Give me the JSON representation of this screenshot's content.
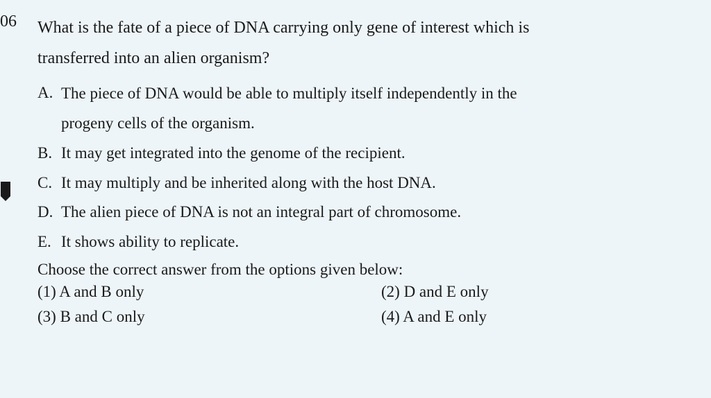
{
  "question": {
    "number": "06",
    "text_line1": "What is the fate of a piece of DNA carrying only gene of interest which is",
    "text_line2": "transferred into an alien organism?"
  },
  "options": {
    "A": {
      "letter": "A.",
      "text_line1": "The piece of DNA would be able to multiply itself independently in the",
      "text_line2": "progeny cells of the organism."
    },
    "B": {
      "letter": "B.",
      "text": "It may get integrated into the genome of the recipient."
    },
    "C": {
      "letter": "C.",
      "text": "It may multiply and be inherited along with the host DNA."
    },
    "D": {
      "letter": "D.",
      "text": "The alien piece of DNA is not an integral part of chromosome."
    },
    "E": {
      "letter": "E.",
      "text": "It shows ability to replicate."
    }
  },
  "choose_prompt": "Choose the correct answer from the options given below:",
  "answers": {
    "opt1": "(1) A and B only",
    "opt2": "(2) D and E only",
    "opt3": "(3) B and C only",
    "opt4": "(4) A and E only"
  }
}
